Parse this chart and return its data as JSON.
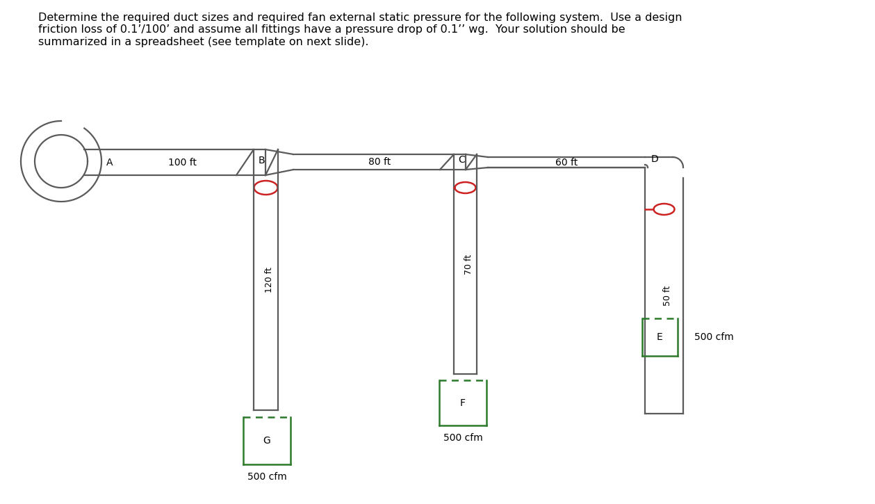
{
  "title_text": "Determine the required duct sizes and required fan external static pressure for the following system.  Use a design\nfriction loss of 0.1’/100’ and assume all fittings have a pressure drop of 0.1’’ wg.  Your solution should be\nsummarized in a spreadsheet (see template on next slide).",
  "bg_color": "#ffffff",
  "duct_color": "#5a5a5a",
  "duct_lw": 1.6,
  "green_color": "#2a7a2a",
  "red_color": "#cc2222",
  "text_color": "#000000",
  "label_100ft": "100 ft",
  "label_80ft": "80 ft",
  "label_60ft": "60 ft",
  "label_120ft": "120 ft",
  "label_70ft": "70 ft",
  "label_50ft": "50 ft",
  "label_A": "A",
  "label_B": "B",
  "label_C": "C",
  "label_D": "D",
  "label_E": "E",
  "label_F": "F",
  "label_G": "G",
  "cfm_G": "500 cfm",
  "cfm_F": "500 cfm",
  "cfm_E": "500 cfm"
}
